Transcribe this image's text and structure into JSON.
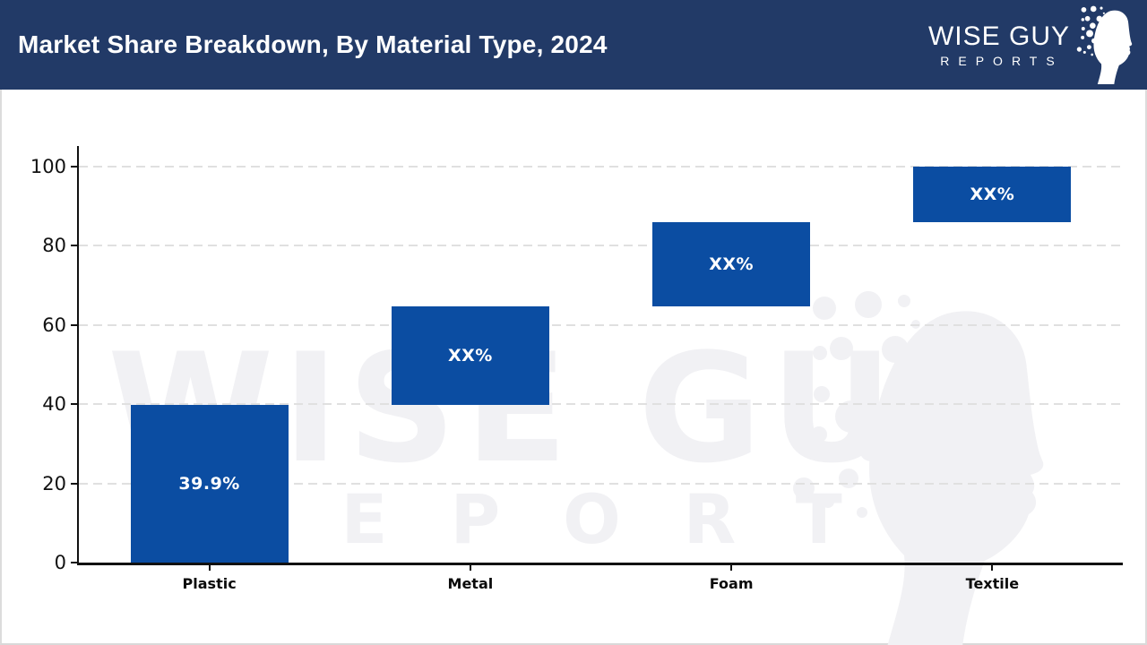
{
  "header": {
    "title": "Market Share Breakdown, By Material Type, 2024",
    "logo": {
      "name_line": "WISE GUY",
      "sub_line": "REPORTS"
    }
  },
  "watermark": {
    "line1": "WISE GUY",
    "line2": "REPORTS"
  },
  "colors": {
    "header_bg": "#223a67",
    "bar_fill": "#0b4da2",
    "grid": "#e0e0e0",
    "axis": "#111111",
    "tick_text": "#111111",
    "bar_label_text": "#ffffff",
    "watermark": "#f1f1f4"
  },
  "chart_data": {
    "type": "bar",
    "subtype": "waterfall",
    "title": "Market Share Breakdown, By Material Type, 2024",
    "categories": [
      "Plastic",
      "Metal",
      "Foam",
      "Textile"
    ],
    "segments": [
      {
        "category": "Plastic",
        "start": 0,
        "end": 39.9,
        "value": 39.9,
        "label": "39.9%"
      },
      {
        "category": "Metal",
        "start": 39.9,
        "end": 64.6,
        "value": 24.7,
        "label": "XX%"
      },
      {
        "category": "Foam",
        "start": 64.6,
        "end": 86.0,
        "value": 21.4,
        "label": "XX%"
      },
      {
        "category": "Textile",
        "start": 86.0,
        "end": 100.0,
        "value": 14.0,
        "label": "XX%"
      }
    ],
    "xlabel": "",
    "ylabel": "",
    "ylim": [
      0,
      100
    ],
    "yticks": [
      0,
      20,
      40,
      60,
      80,
      100
    ],
    "grid": "horizontal-dashed",
    "legend": "none",
    "bar_color": "#0b4da2"
  }
}
